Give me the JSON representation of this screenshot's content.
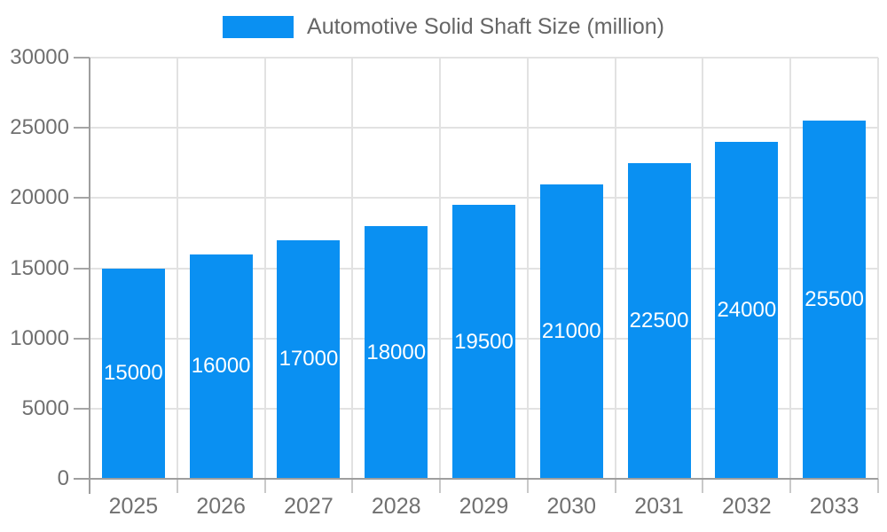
{
  "legend": {
    "label": "Automotive Solid Shaft Size (million)"
  },
  "chart_data": {
    "type": "bar",
    "title": "Automotive Solid Shaft Size (million)",
    "categories": [
      "2025",
      "2026",
      "2027",
      "2028",
      "2029",
      "2030",
      "2031",
      "2032",
      "2033"
    ],
    "values": [
      15000,
      16000,
      17000,
      18000,
      19500,
      21000,
      22500,
      24000,
      25500
    ],
    "bar_labels": [
      "15000",
      "16000",
      "17000",
      "18000",
      "19500",
      "21000",
      "22500",
      "24000",
      "25500"
    ],
    "xlabel": "",
    "ylabel": "",
    "ylim": [
      0,
      30000
    ],
    "ytick_step": 5000,
    "y_ticks": [
      0,
      5000,
      10000,
      15000,
      20000,
      25000,
      30000
    ],
    "y_tick_labels": [
      "0",
      "5000",
      "10000",
      "15000",
      "20000",
      "25000",
      "30000"
    ],
    "grid": true,
    "legend_position": "top-center",
    "colors": {
      "bar": "#0A90F2",
      "grid": "#E2E2E2",
      "axis": "#9E9E9E",
      "y_tick_mark": "#A6A6A6",
      "x_tick_mark": "#C9C9C9",
      "tick_text": "#707070",
      "bar_label_text": "#FFFFFF",
      "legend_text": "#666666",
      "background": "#FFFFFF"
    }
  }
}
